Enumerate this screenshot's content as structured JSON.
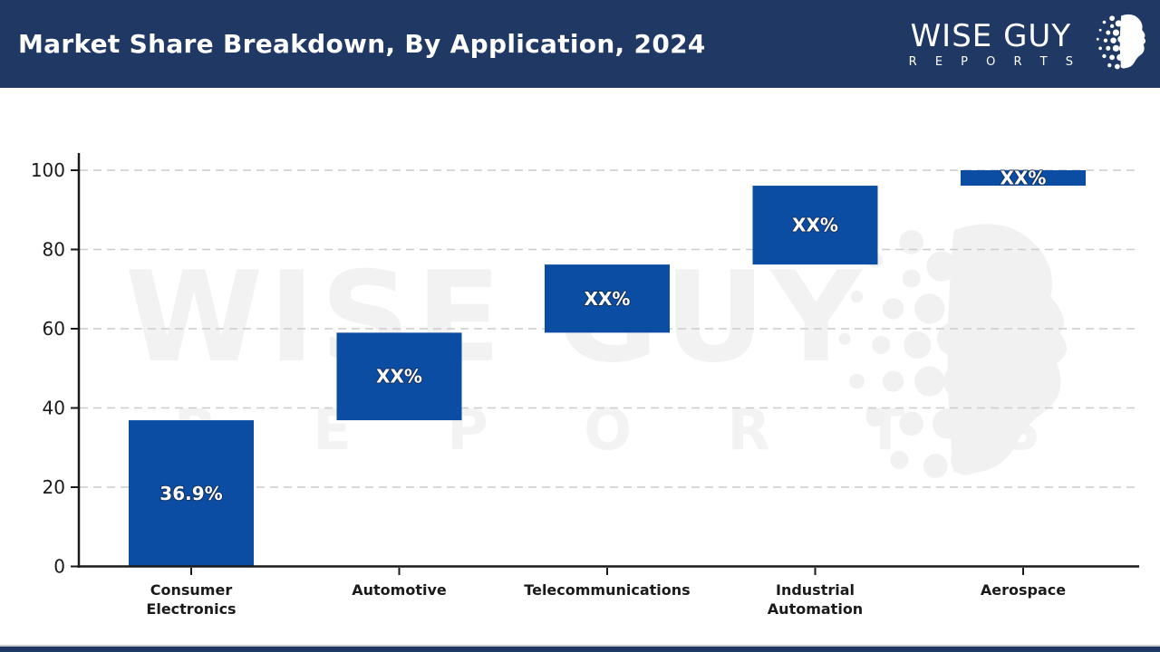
{
  "header": {
    "title": "Market Share Breakdown, By Application, 2024",
    "logo_line1": "WISE GUY",
    "logo_line2": "R E P O R T S"
  },
  "watermark": {
    "line1": "WISE GUY",
    "line2": "R E P O R T S"
  },
  "colors": {
    "header_bg": "#1f3864",
    "footer_bg": "#1f3864",
    "bar": "#0b4da2",
    "bar_label": "#ffffff",
    "grid": "#cccccc",
    "axis": "#1a1a1a"
  },
  "chart_data": {
    "type": "bar",
    "subtype": "waterfall",
    "title": "Market Share Breakdown, By Application, 2024",
    "categories": [
      [
        "Consumer",
        "Electronics"
      ],
      [
        "Automotive"
      ],
      [
        "Telecommunications"
      ],
      [
        "Industrial",
        "Automation"
      ],
      [
        "Aerospace"
      ]
    ],
    "segments": [
      {
        "category": "Consumer Electronics",
        "start": 0,
        "end": 36.9,
        "label": "36.9%"
      },
      {
        "category": "Automotive",
        "start": 36.9,
        "end": 59.0,
        "label": "XX%"
      },
      {
        "category": "Telecommunications",
        "start": 59.0,
        "end": 76.2,
        "label": "XX%"
      },
      {
        "category": "Industrial Automation",
        "start": 76.2,
        "end": 96.1,
        "label": "XX%"
      },
      {
        "category": "Aerospace",
        "start": 96.1,
        "end": 100.0,
        "label": "XX%"
      }
    ],
    "yticks": [
      0,
      20,
      40,
      60,
      80,
      100
    ],
    "ylim": [
      0,
      105
    ],
    "xlabel": "",
    "ylabel": "",
    "grid": "horizontal-dashed",
    "legend": "none"
  }
}
